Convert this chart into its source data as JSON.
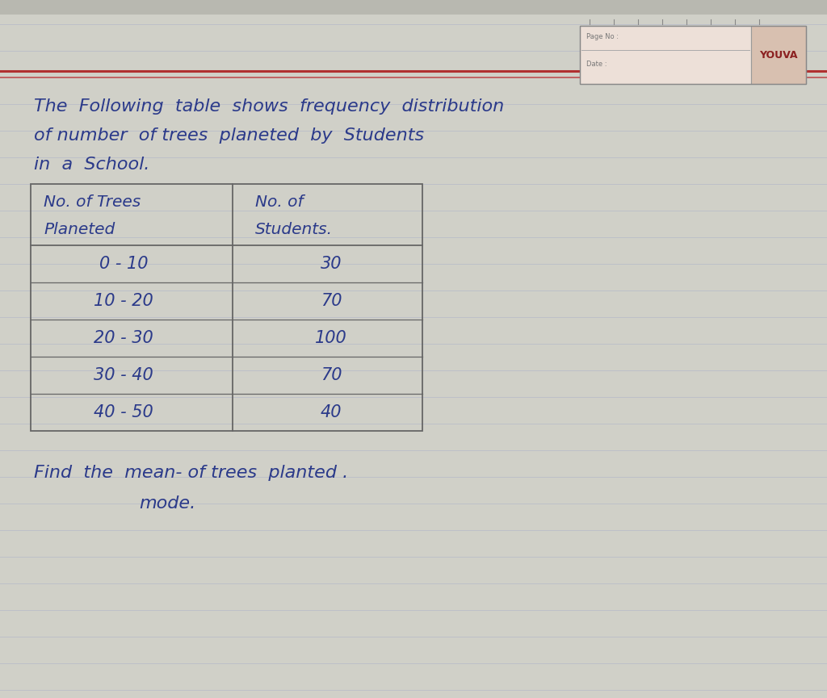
{
  "title_line1": "The  Following  table  shows  frequency  distribution",
  "title_line2": "of number  of trees  planeted  by  Students",
  "title_line3": "in  a  School.",
  "col1_header_line1": "No. of Trees",
  "col1_header_line2": "Planeted",
  "col2_header_line1": "No. of",
  "col2_header_line2": "Students.",
  "rows": [
    [
      "0 - 10",
      "30"
    ],
    [
      "10 - 20",
      "70"
    ],
    [
      "20 - 30",
      "100"
    ],
    [
      "30 - 40",
      "70"
    ],
    [
      "40 - 50",
      "40"
    ]
  ],
  "footer_line1": "Find  the  mean- of trees  planted .",
  "footer_line2": "mode.",
  "text_color": "#2b3a8a",
  "table_border_color": "#666666",
  "bg_color": "#d4d4cc",
  "notebook_line_color": "#b8bcc8",
  "red_line_color1": "#b03030",
  "red_line_color2": "#c04040",
  "box_fill": "#e8dcd4",
  "youva_fill": "#d4b8a8",
  "youva_text": "#8b2020",
  "box_text": "#666666",
  "top_dark_strip": "#a0a098"
}
